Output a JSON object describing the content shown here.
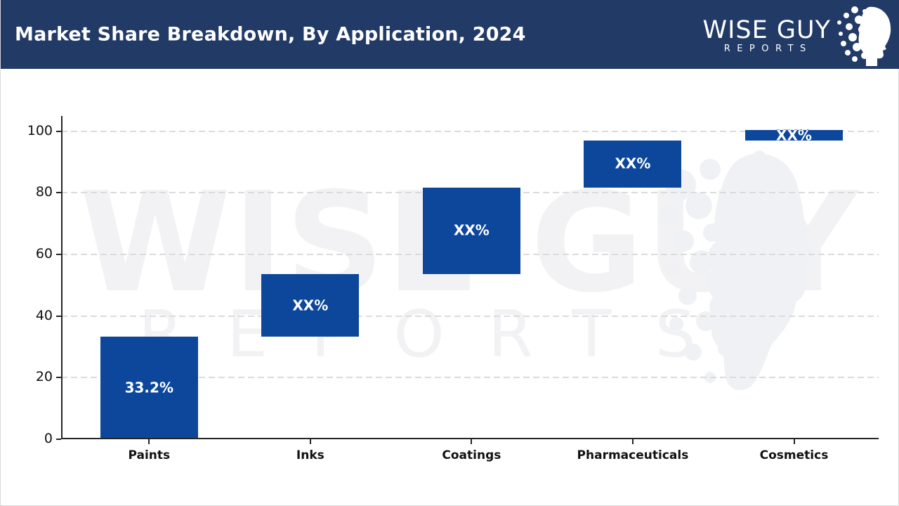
{
  "header": {
    "title": "Market Share Breakdown, By Application, 2024",
    "logo": {
      "line1": "WISE GUY",
      "line2": "REPORTS"
    }
  },
  "watermark": {
    "line1": "WISE GUY",
    "line2": "REPORTS"
  },
  "colors": {
    "header_bg": "#213a66",
    "bar": "#0c479b",
    "bar_label_text": "#ffffff",
    "axis": "#262626",
    "gridline": "#dbdbdb",
    "watermark": "#f2f2f4"
  },
  "chart_data": {
    "type": "bar",
    "subtype": "waterfall",
    "title": "Market Share Breakdown, By Application, 2024",
    "xlabel": "",
    "ylabel": "",
    "categories": [
      "Paints",
      "Inks",
      "Coatings",
      "Pharmaceuticals",
      "Cosmetics"
    ],
    "bars": [
      {
        "category": "Paints",
        "start": 0,
        "end": 33.2,
        "value": 33.2,
        "label": "33.2%"
      },
      {
        "category": "Inks",
        "start": 33.2,
        "end": 53.6,
        "value": 20.4,
        "label": "XX%"
      },
      {
        "category": "Coatings",
        "start": 53.6,
        "end": 81.7,
        "value": 28.1,
        "label": "XX%"
      },
      {
        "category": "Pharmaceuticals",
        "start": 81.7,
        "end": 97.0,
        "value": 15.3,
        "label": "XX%"
      },
      {
        "category": "Cosmetics",
        "start": 97.0,
        "end": 100.3,
        "value": 3.3,
        "label": "XX%"
      }
    ],
    "yticks": [
      0,
      20,
      40,
      60,
      80,
      100
    ],
    "ytick_labels": [
      "0",
      "20",
      "40",
      "60",
      "80",
      "100"
    ],
    "ylim": [
      0,
      105
    ],
    "grid": "horizontal-dashed",
    "legend": "none"
  }
}
